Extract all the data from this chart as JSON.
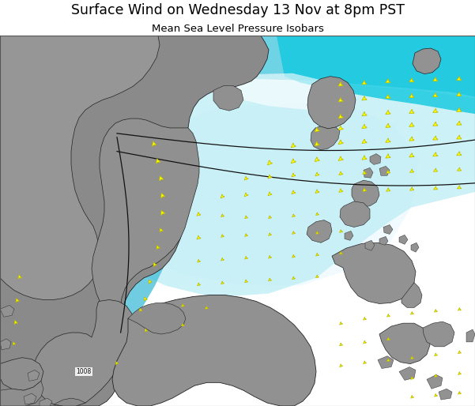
{
  "title": "Surface Wind on Wednesday 13 Nov at 8pm PST",
  "subtitle": "Mean Sea Level Pressure Isobars",
  "title_fontsize": 12.5,
  "subtitle_fontsize": 9.5,
  "fig_width": 6.01,
  "fig_height": 5.14,
  "dpi": 100,
  "bg_color": "#ffffff",
  "sea_base": "#e8f7f8",
  "sea_cyan_strong": "#00d4e8",
  "sea_cyan_mid": "#40cce0",
  "sea_cyan_light": "#90dde8",
  "sea_very_light": "#c8eff5",
  "land_color_dark": "#888888",
  "land_color_mid": "#999999",
  "land_color_light": "#aaaaaa",
  "land_edge": "#222222",
  "arrow_fill": "#ffff00",
  "arrow_edge": "#b8b800",
  "isobar_color": "#111111",
  "label_color": "#111111"
}
